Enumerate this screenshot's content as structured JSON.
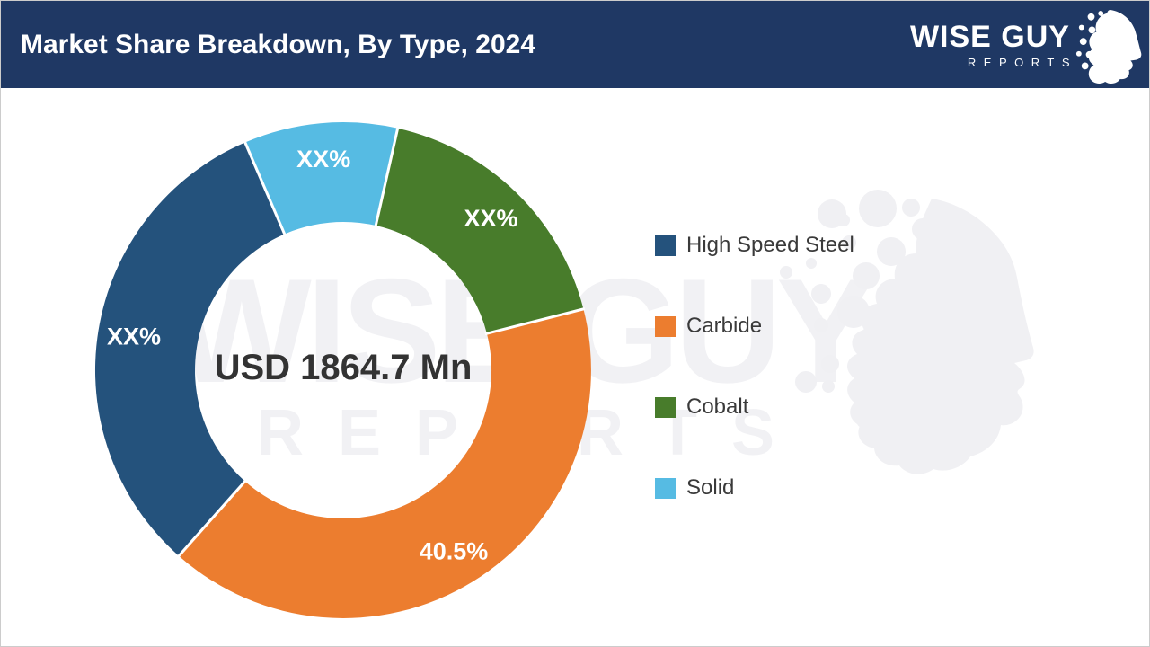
{
  "header": {
    "title": "Market Share Breakdown, By Type, 2024",
    "logo": {
      "line1": "WISE GUY",
      "line2": "REPORTS"
    }
  },
  "watermark": {
    "line1": "WISE GUY",
    "line2": "REPORTS"
  },
  "chart_data": {
    "type": "pie",
    "subtype": "donut",
    "title": "Market Share Breakdown, By Type, 2024",
    "center_label": "USD 1864.7 Mn",
    "units": "percent of market share",
    "start_angle_deg": 113.3,
    "direction": "counterclockwise",
    "inner_radius_ratio": 0.6,
    "legend_position": "right",
    "segments": [
      {
        "name": "High Speed Steel",
        "display_label": "XX%",
        "value_pct": 32.0,
        "value_shown": false,
        "color": "#24527c"
      },
      {
        "name": "Carbide",
        "display_label": "40.5%",
        "value_pct": 40.5,
        "value_shown": true,
        "color": "#ec7d2f"
      },
      {
        "name": "Cobalt",
        "display_label": "XX%",
        "value_pct": 17.5,
        "value_shown": false,
        "color": "#487c2b"
      },
      {
        "name": "Solid",
        "display_label": "XX%",
        "value_pct": 10.0,
        "value_shown": false,
        "color": "#56bbe3"
      }
    ]
  },
  "colors": {
    "header_bg": "#1f3864",
    "center_text": "#333333",
    "legend_text": "#3a3a3a",
    "watermark": "#f1f1f4",
    "page_border": "#cccccc",
    "segment_gap": "#ffffff"
  }
}
